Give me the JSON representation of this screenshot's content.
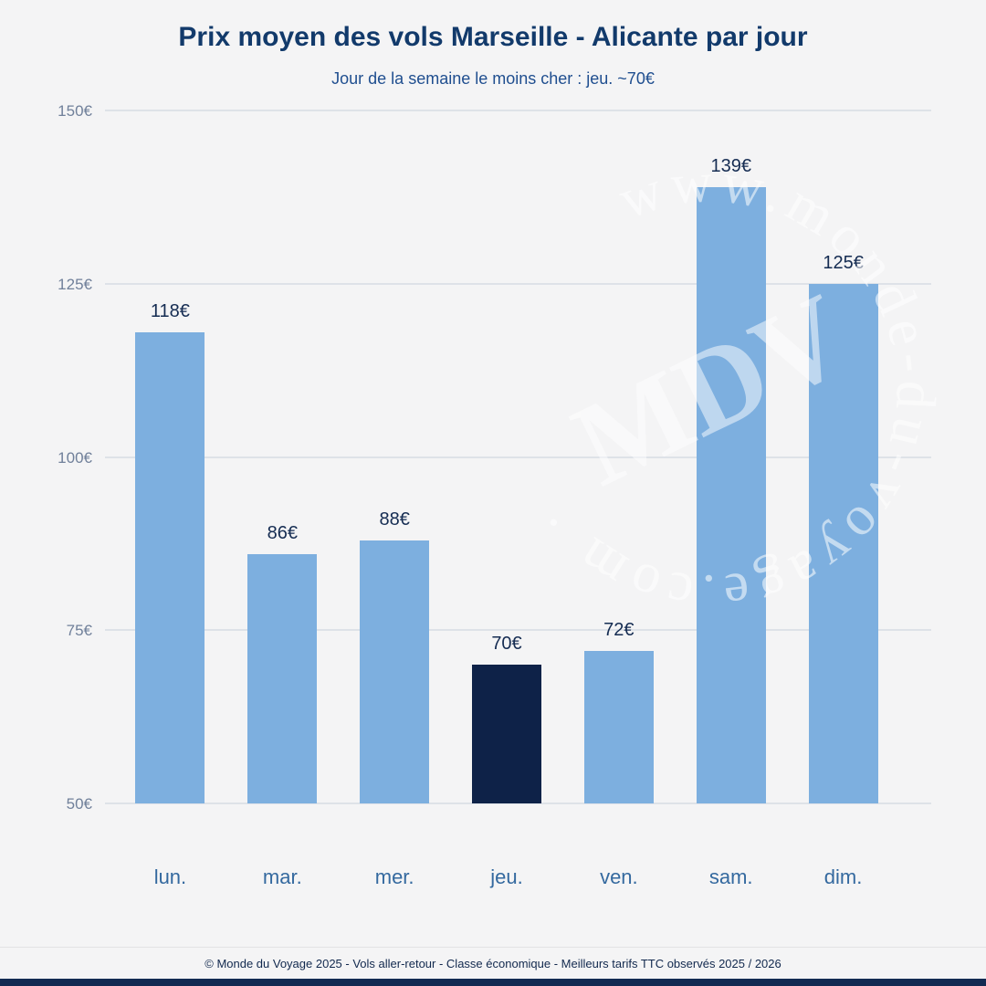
{
  "title": "Prix moyen des vols Marseille - Alicante par jour",
  "subtitle": "Jour de la semaine le moins cher : jeu. ~70€",
  "chart_data": {
    "type": "bar",
    "categories": [
      "lun.",
      "mar.",
      "mer.",
      "jeu.",
      "ven.",
      "sam.",
      "dim."
    ],
    "values": [
      118,
      86,
      88,
      70,
      72,
      139,
      125
    ],
    "value_labels": [
      "118€",
      "86€",
      "88€",
      "70€",
      "72€",
      "139€",
      "125€"
    ],
    "highlight_index": 3,
    "highlight_day": "jeu.",
    "ylim": [
      50,
      150
    ],
    "yticks": [
      150,
      125,
      100,
      75,
      50
    ],
    "ytick_labels": [
      "150€",
      "125€",
      "100€",
      "75€",
      "50€"
    ],
    "bar_color": "#7dafdf",
    "highlight_color": "#0e2248",
    "grid": true,
    "legend": "none",
    "xlabel": "",
    "ylabel": ""
  },
  "watermark": {
    "circle_text": "www.monde-du-voyage.com ·",
    "initials": "MDV"
  },
  "footer": {
    "text": "© Monde du Voyage 2025 - Vols aller-retour - Classe économique - Meilleurs tarifs TTC observés 2025 / 2026"
  }
}
